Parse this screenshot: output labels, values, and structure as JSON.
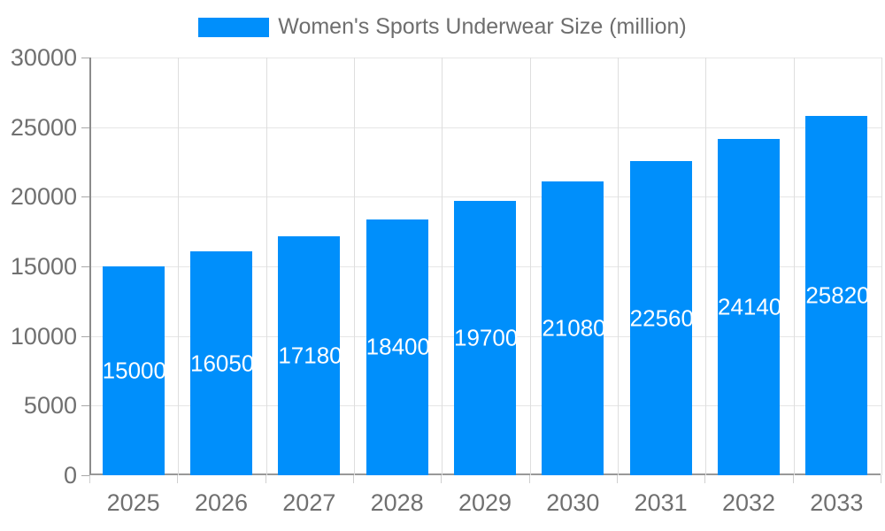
{
  "legend": {
    "label": "Women's Sports Underwear Size (million)",
    "swatch_color": "#008FFB"
  },
  "chart_data": {
    "type": "bar",
    "title": "Women's Sports Underwear Size (million)",
    "categories": [
      "2025",
      "2026",
      "2027",
      "2028",
      "2029",
      "2030",
      "2031",
      "2032",
      "2033"
    ],
    "values": [
      15000,
      16050,
      17180,
      18400,
      19700,
      21080,
      22560,
      24140,
      25820
    ],
    "value_labels": [
      "15000",
      "16050",
      "17180",
      "18400",
      "19700",
      "21080",
      "22560",
      "24140",
      "25820"
    ],
    "xlabel": "",
    "ylabel": "",
    "ylim": [
      0,
      30000
    ],
    "ytick_step": 5000,
    "ytick_labels": [
      "0",
      "5000",
      "10000",
      "15000",
      "20000",
      "25000",
      "30000"
    ],
    "bar_color": "#008FFB",
    "bar_label_color": "#ffffff",
    "grid": true,
    "legend_position": "top-center"
  }
}
